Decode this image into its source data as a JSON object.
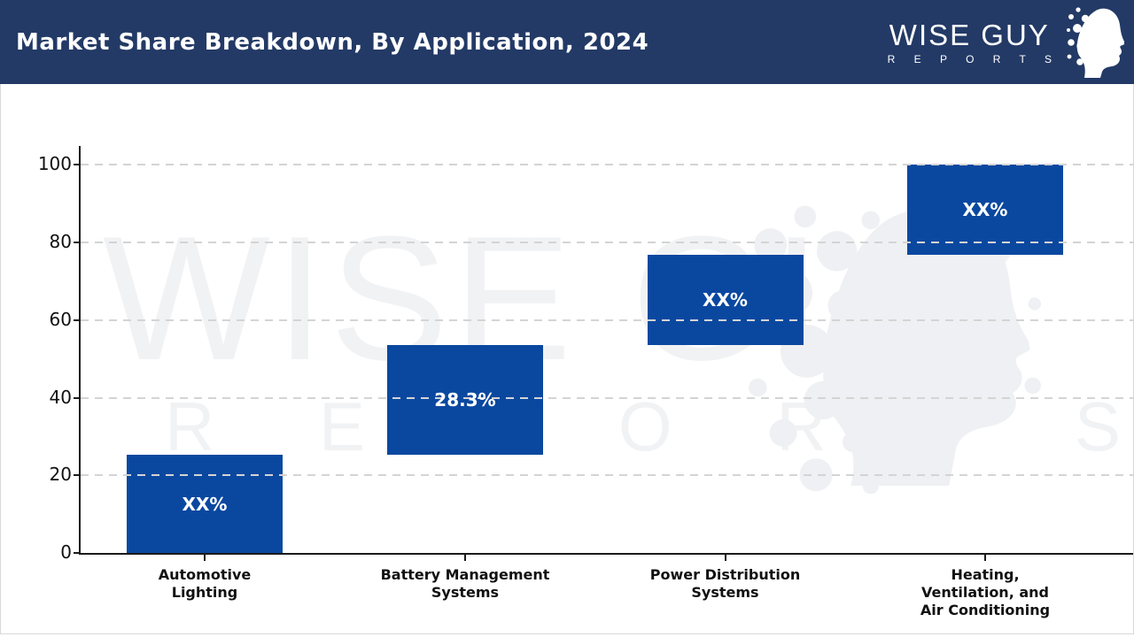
{
  "header": {
    "title": "Market Share Breakdown, By Application, 2024",
    "bg_color": "#233a66",
    "logo": {
      "line1": "WISE GUY",
      "line2": "R E P O R T S"
    }
  },
  "watermark": {
    "line1": "WISE GUY",
    "line2": "R E P O R T S"
  },
  "chart_data": {
    "type": "bar",
    "subtype": "waterfall",
    "title": "Market Share Breakdown, By Application, 2024",
    "categories": [
      "Automotive\nLighting",
      "Battery Management\nSystems",
      "Power Distribution\nSystems",
      "Heating,\nVentilation, and\nAir Conditioning"
    ],
    "segments": [
      {
        "name": "Automotive Lighting",
        "start": 0,
        "end": 25.3,
        "bar_label": "XX%"
      },
      {
        "name": "Battery Management Systems",
        "start": 25.3,
        "end": 53.6,
        "bar_label": "28.3%"
      },
      {
        "name": "Power Distribution Systems",
        "start": 53.6,
        "end": 76.9,
        "bar_label": "XX%"
      },
      {
        "name": "Heating, Ventilation, and Air Conditioning",
        "start": 76.9,
        "end": 100,
        "bar_label": "XX%"
      }
    ],
    "yticks": [
      0,
      20,
      40,
      60,
      80,
      100
    ],
    "ylim": [
      0,
      105
    ],
    "xlabel": "",
    "ylabel": "",
    "bar_color": "#0a48a0",
    "grid": "dashed-horizontal",
    "legend": "none"
  }
}
